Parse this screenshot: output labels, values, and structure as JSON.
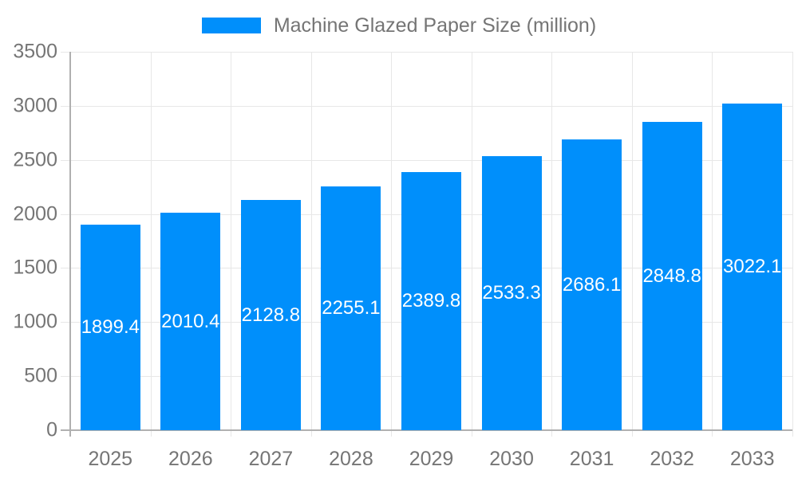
{
  "legend": {
    "label": "Machine Glazed Paper Size (million)",
    "marker_color": "#008FFB"
  },
  "chart_data": {
    "type": "bar",
    "title": "Machine Glazed Paper Size (million)",
    "categories": [
      "2025",
      "2026",
      "2027",
      "2028",
      "2029",
      "2030",
      "2031",
      "2032",
      "2033"
    ],
    "series": [
      {
        "name": "Machine Glazed Paper Size (million)",
        "values": [
          1899.4,
          2010.4,
          2128.8,
          2255.1,
          2389.8,
          2533.3,
          2686.1,
          2848.8,
          3022.1
        ],
        "labels": [
          "1899.4",
          "2010.4",
          "2128.8",
          "2255.1",
          "2389.8",
          "2533.3",
          "2686.1",
          "2848.8",
          "3022.1"
        ]
      }
    ],
    "xlabel": "",
    "ylabel": "",
    "ylim": [
      0,
      3500
    ],
    "yticks": [
      0,
      500,
      1000,
      1500,
      2000,
      2500,
      3000,
      3500
    ],
    "grid": true,
    "legend_position": "top",
    "colors": {
      "bar": "#008FFB",
      "bar_label_text": "#ffffff",
      "axis_text": "#757575",
      "gridline": "#e7e7e7",
      "axis_line": "#b0b0b0",
      "background": "#ffffff"
    }
  }
}
